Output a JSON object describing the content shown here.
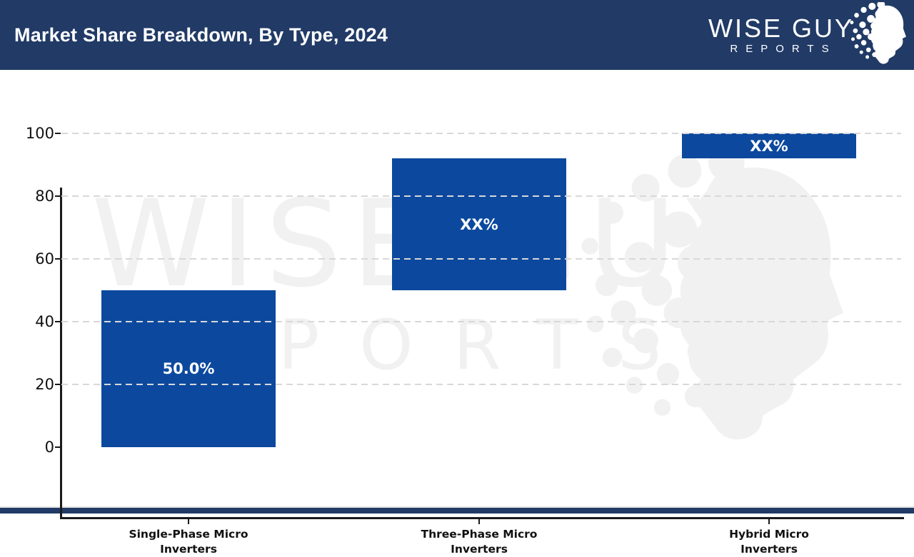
{
  "header": {
    "title": "Market Share Breakdown, By Type, 2024",
    "logo": {
      "line1": "WISE GUY",
      "line2": "REPORTS"
    }
  },
  "watermark": {
    "line1": "WISE GUY",
    "line2": "REPORTS"
  },
  "colors": {
    "header_navy": "#213A66",
    "bar_blue": "#0C499E",
    "gridline_gray": "#D8D8D8",
    "watermark_gray": "#F1F1F1",
    "axis_black": "#1A1A1A"
  },
  "chart_data": {
    "type": "bar",
    "subtype": "waterfall",
    "title": "Market Share Breakdown, By Type, 2024",
    "xlabel": "",
    "ylabel": "",
    "ylim": [
      0,
      100
    ],
    "yticks": [
      0,
      20,
      40,
      60,
      80,
      100
    ],
    "grid": "horizontal-dashed",
    "legend": "none",
    "categories": [
      {
        "line1": "Single-Phase Micro",
        "line2": "Inverters"
      },
      {
        "line1": "Three-Phase Micro",
        "line2": "Inverters"
      },
      {
        "line1": "Hybrid Micro",
        "line2": "Inverters"
      }
    ],
    "segments": [
      {
        "category": "Single-Phase Micro Inverters",
        "start": 0,
        "end": 50,
        "label": "50.0%"
      },
      {
        "category": "Three-Phase Micro Inverters",
        "start": 50,
        "end": 92,
        "label": "XX%"
      },
      {
        "category": "Hybrid Micro Inverters",
        "start": 92,
        "end": 100,
        "label": "XX%"
      }
    ]
  }
}
